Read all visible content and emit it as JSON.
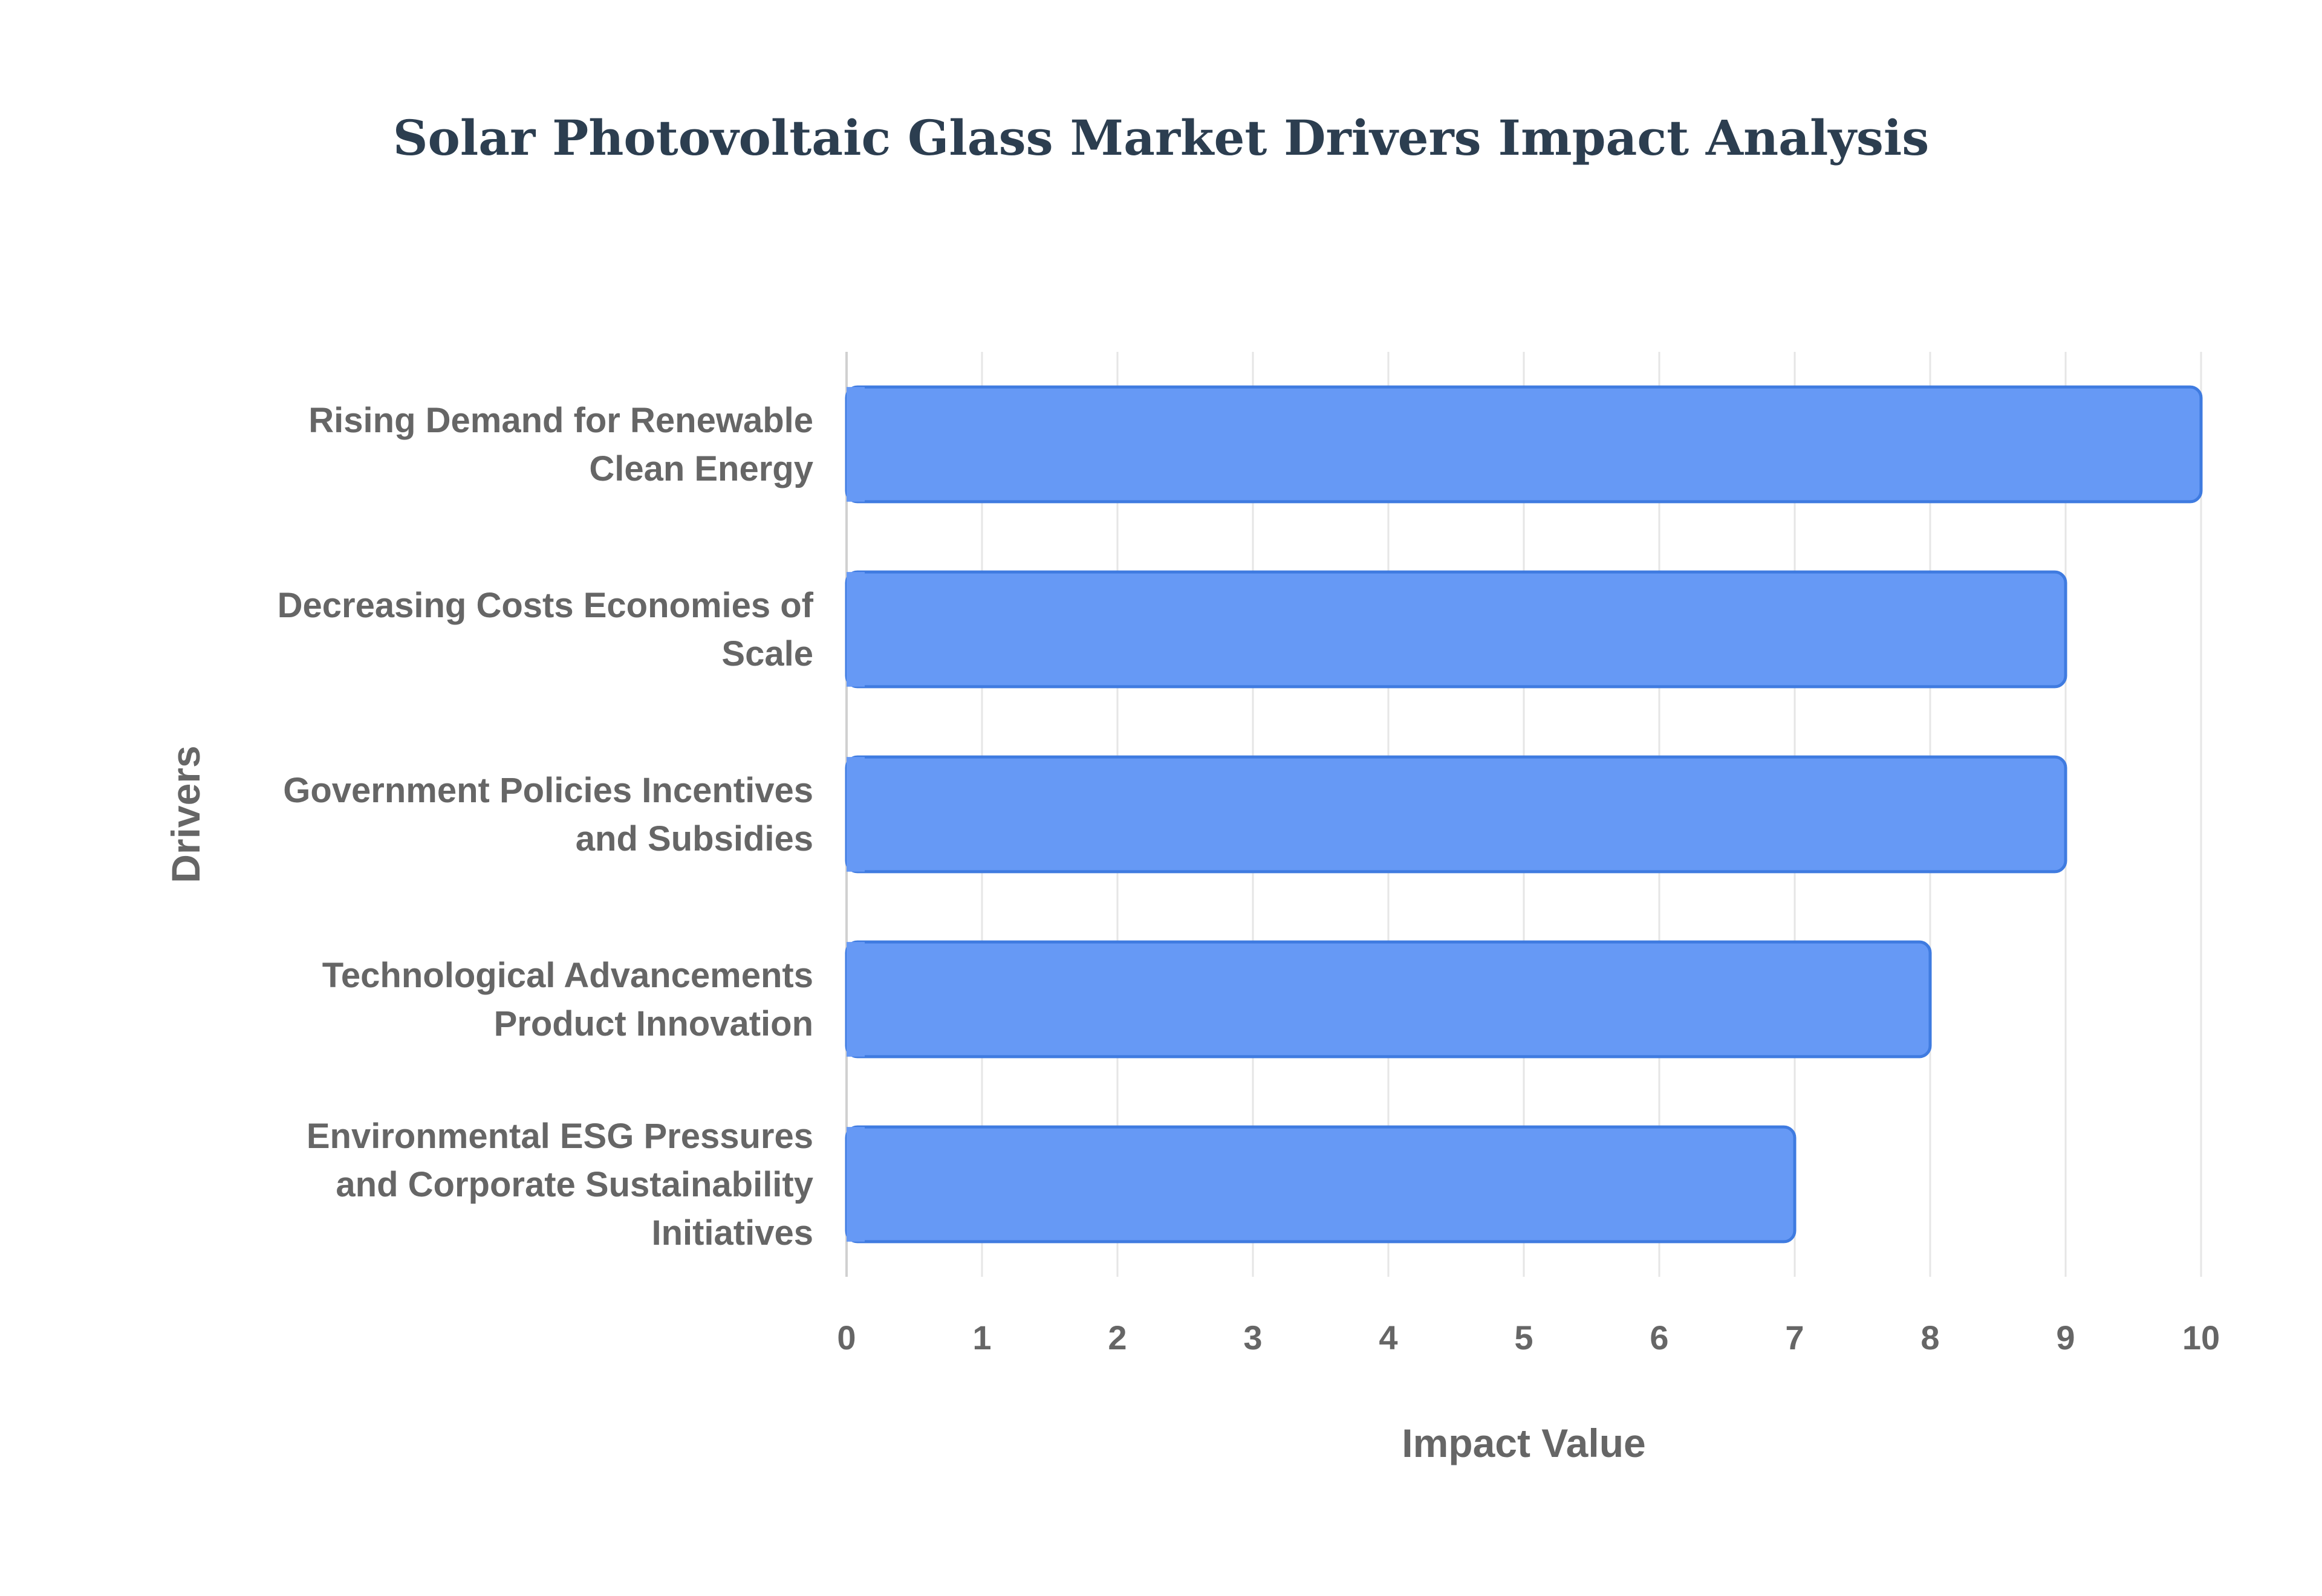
{
  "chart_data": {
    "type": "bar",
    "orientation": "horizontal",
    "title": "Solar Photovoltaic Glass Market Drivers Impact Analysis",
    "xlabel": "Impact Value",
    "ylabel": "Drivers",
    "xlim": [
      0,
      10
    ],
    "xticks": [
      "0",
      "1",
      "2",
      "3",
      "4",
      "5",
      "6",
      "7",
      "8",
      "9",
      "10"
    ],
    "grid": true,
    "categories": [
      [
        "Rising Demand for Renewable",
        "Clean Energy"
      ],
      [
        "Decreasing Costs Economies of",
        "Scale"
      ],
      [
        "Government Policies Incentives",
        "and Subsidies"
      ],
      [
        "Technological Advancements",
        "Product Innovation"
      ],
      [
        "Environmental ESG Pressures",
        "and Corporate Sustainability",
        "Initiatives"
      ]
    ],
    "values": [
      10,
      9,
      9,
      8,
      7
    ],
    "colors": {
      "bar_fill": "#6699f5",
      "bar_stroke": "#3f7be0",
      "grid": "#e6e6e6",
      "axis": "#d0d0d0"
    }
  }
}
